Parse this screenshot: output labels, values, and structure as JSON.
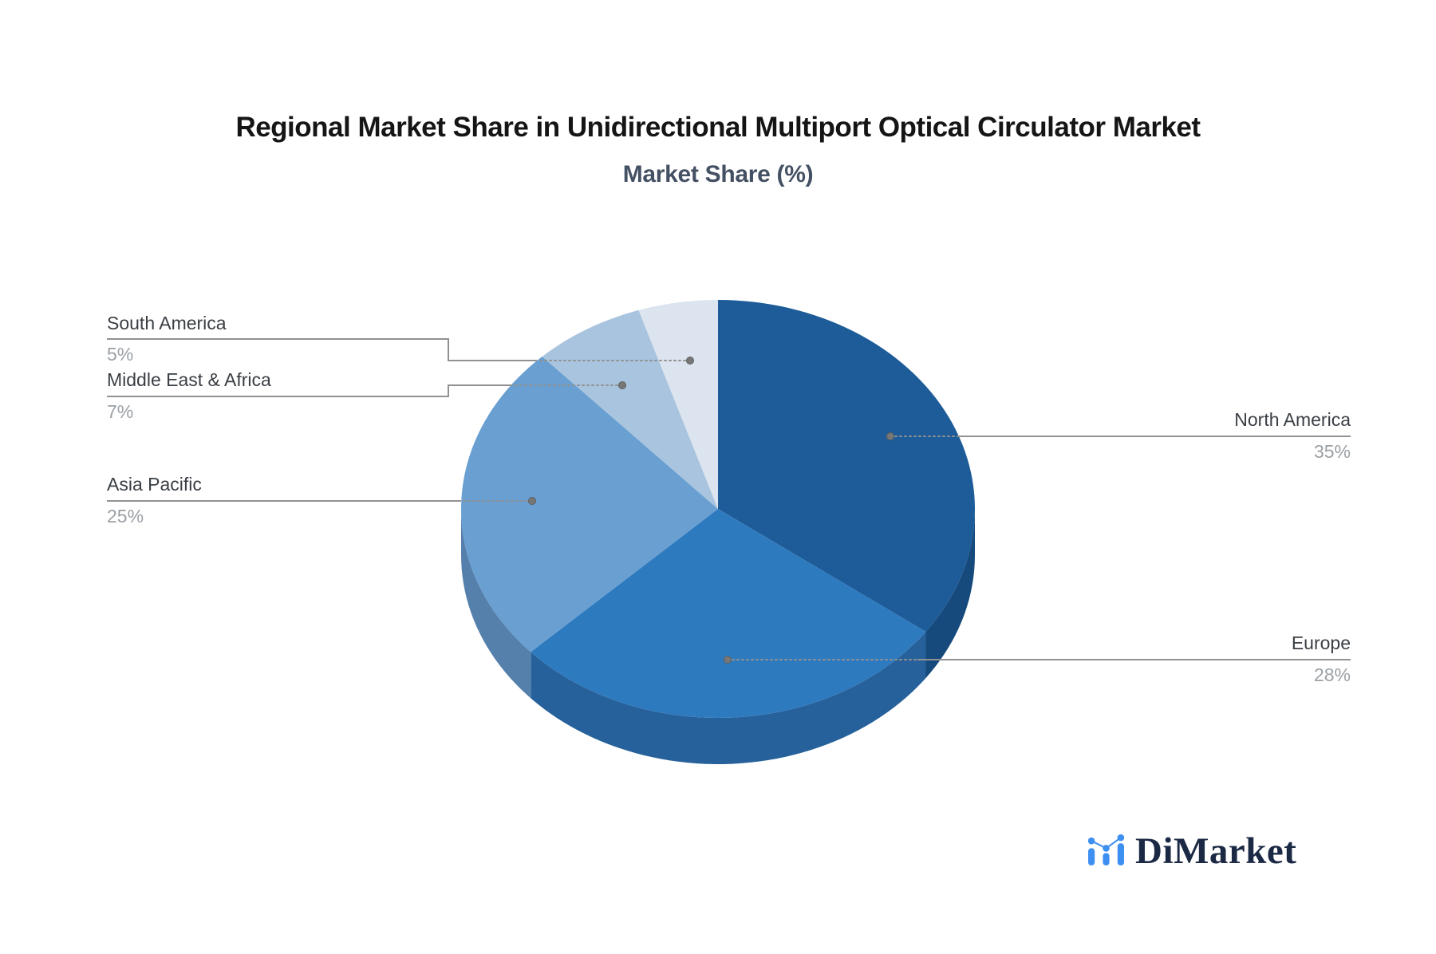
{
  "chart": {
    "title": "Regional Market Share in Unidirectional Multiport Optical Circulator Market",
    "subtitle": "Market Share (%)"
  },
  "chart_data": {
    "type": "pie",
    "style": "3d",
    "unit": "%",
    "title": "Regional Market Share in Unidirectional Multiport Optical Circulator Market",
    "subtitle": "Market Share (%)",
    "labels": [
      "North America",
      "Europe",
      "Asia Pacific",
      "Middle East & Africa",
      "South America"
    ],
    "values": [
      35,
      28,
      25,
      7,
      5
    ],
    "display_values": [
      "35%",
      "28%",
      "25%",
      "7%",
      "5%"
    ],
    "colors": [
      "#1d5c98",
      "#2e7abf",
      "#699fd1",
      "#a8c4de",
      "#dce4ef"
    ],
    "side_colors": [
      "#164a7d",
      "#27619b",
      "#5480ab",
      "#8aa8c6",
      "#b9c6d8"
    ],
    "label_line_color": "#919191",
    "label_name_color": "#3a3f45",
    "label_value_color": "#9aa0a6",
    "legend": "none"
  },
  "branding": {
    "logo_text": "DiMarket",
    "logo_color": "#1b2944",
    "logo_icon": "bar-chart-trend-icon",
    "logo_icon_color": "#3e8ff2"
  }
}
